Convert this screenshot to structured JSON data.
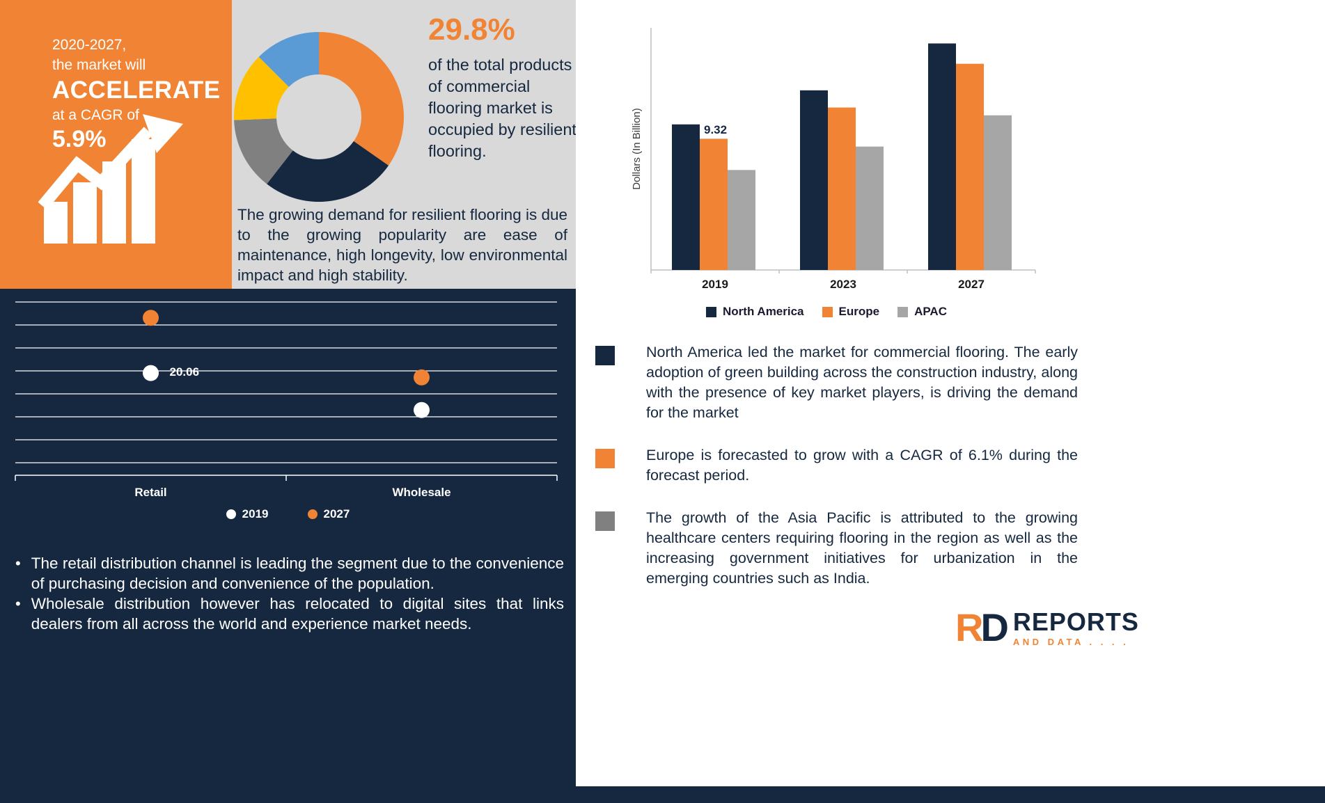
{
  "palette": {
    "orange": "#F08434",
    "navy": "#15283F",
    "panel_gray": "#D9D9D9",
    "bar_gray": "#A6A6A6",
    "slice_gray": "#808080",
    "yellow": "#FFC000",
    "blue": "#5B9BD5",
    "white": "#FFFFFF"
  },
  "cagr_panel": {
    "line1": "2020-2027,",
    "line2": "the market will",
    "emphasis": "ACCELERATE",
    "line3": "at a CAGR of",
    "value": "5.9%"
  },
  "resilient_panel": {
    "stat": "29.8%",
    "stat_caption": "of the total products of commercial flooring market is occupied by resilient flooring.",
    "body": "The growing demand for resilient flooring is due to the growing popularity are ease of maintenance, high longevity, low environmental impact and high stability."
  },
  "distribution_panel": {
    "bullets": [
      "The retail distribution channel is leading the segment due to the convenience of purchasing decision and convenience of the population.",
      "Wholesale distribution however has relocated to digital sites that links dealers from all across the world and experience market needs."
    ]
  },
  "regional_panel": {
    "bullets": [
      {
        "marker_color": "#15283F",
        "text": "North America led the market for commercial flooring. The early adoption of green building across the construction industry, along with the presence of key market players, is driving the demand for the market"
      },
      {
        "marker_color": "#F08434",
        "text": "Europe is forecasted to grow with a CAGR of 6.1% during the forecast period."
      },
      {
        "marker_color": "#808080",
        "text": "The growth of the Asia Pacific is attributed to the growing healthcare centers requiring flooring in the region as well as the increasing government initiatives for urbanization in the emerging countries such as India."
      }
    ]
  },
  "logo": {
    "mark_r": "R",
    "mark_d": "D",
    "name": "REPORTS",
    "tagline": "AND DATA . . . ."
  },
  "chart_data": [
    {
      "id": "product-share-donut",
      "type": "pie",
      "donut": true,
      "start_angle": "top",
      "labels_visible": false,
      "values": [
        34.7,
        25.8,
        13.9,
        13.1,
        12.5
      ],
      "colors": [
        "#F08434",
        "#15283F",
        "#808080",
        "#FFC000",
        "#5B9BD5"
      ]
    },
    {
      "id": "regional-market-bars",
      "type": "bar",
      "categories": [
        "2019",
        "2023",
        "2027"
      ],
      "series": [
        {
          "name": "North America",
          "color": "#15283F",
          "values": [
            9.32,
            11.5,
            14.5
          ]
        },
        {
          "name": "Europe",
          "color": "#F08434",
          "values": [
            8.4,
            10.4,
            13.2
          ]
        },
        {
          "name": "APAC",
          "color": "#A6A6A6",
          "values": [
            6.4,
            7.9,
            9.9
          ]
        }
      ],
      "ylabel": "Dollars (In Billion)",
      "ylim": [
        0,
        15.5
      ],
      "grid": false,
      "legend_position": "bottom",
      "data_labels": [
        {
          "series": 0,
          "category": 0,
          "text": "9.32"
        }
      ]
    },
    {
      "id": "distribution-dot-plot",
      "type": "scatter",
      "categories": [
        "Retail",
        "Wholesale"
      ],
      "series": [
        {
          "name": "2019",
          "color": "#FFFFFF",
          "values": [
            20.06,
            12.8
          ]
        },
        {
          "name": "2027",
          "color": "#F08434",
          "values": [
            30.9,
            19.2
          ]
        }
      ],
      "ylim": [
        0,
        34
      ],
      "gridline_count": 8,
      "grid": true,
      "legend_position": "bottom",
      "data_labels": [
        {
          "series": 0,
          "category": 0,
          "text": "20.06"
        }
      ]
    }
  ]
}
